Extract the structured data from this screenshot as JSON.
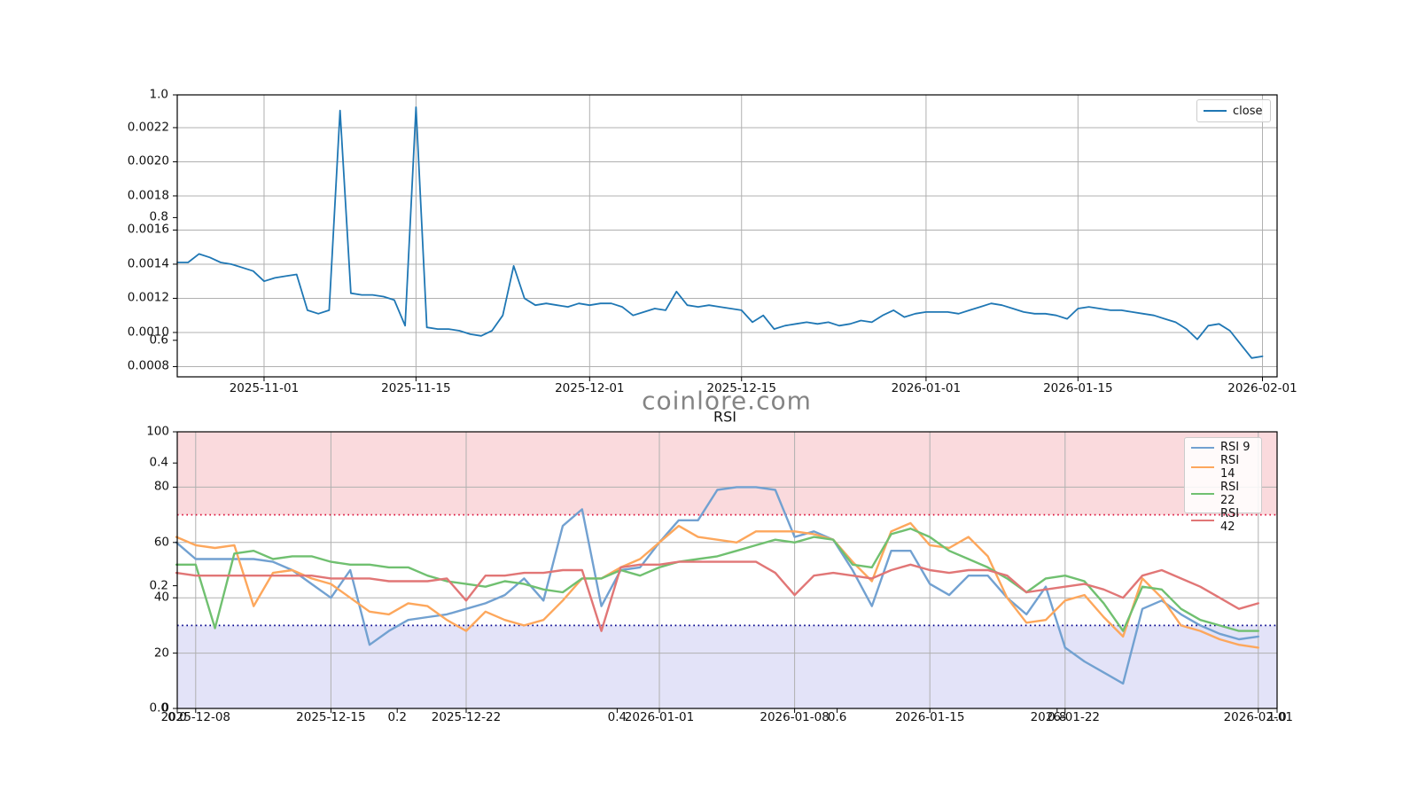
{
  "watermark_text": "coinlore.com",
  "colors": {
    "close": "#1f77b4",
    "rsi9": "#72a1d1",
    "rsi14": "#fda75c",
    "rsi22": "#70c070",
    "rsi42": "#e17676",
    "overbought_line": "#dc143c",
    "oversold_line": "#00008b",
    "overbought_band": "#fadadd",
    "oversold_band": "#e3e3f8",
    "grid": "#b0b0b0",
    "watermark": "#848484"
  },
  "chart_data": [
    {
      "type": "line",
      "name": "price",
      "title": "",
      "start_date": "2025-10-24",
      "end_date": "2026-02-01",
      "interval": "daily",
      "ylim": [
        0.00074,
        0.002392
      ],
      "grid": true,
      "legend_position": "upper right",
      "y_ticks": [
        {
          "label": "0.0008",
          "value": 0.0008
        },
        {
          "label": "0.0010",
          "value": 0.001
        },
        {
          "label": "0.0012",
          "value": 0.0012
        },
        {
          "label": "0.0014",
          "value": 0.0014
        },
        {
          "label": "0.0016",
          "value": 0.0016
        },
        {
          "label": "0.0018",
          "value": 0.0018
        },
        {
          "label": "0.0020",
          "value": 0.002
        },
        {
          "label": "0.0022",
          "value": 0.0022
        }
      ],
      "x_ticks": [
        {
          "label": "2025-11-01",
          "day": 8
        },
        {
          "label": "2025-11-15",
          "day": 22
        },
        {
          "label": "2025-12-01",
          "day": 38
        },
        {
          "label": "2025-12-15",
          "day": 52
        },
        {
          "label": "2026-01-01",
          "day": 69
        },
        {
          "label": "2026-01-15",
          "day": 83
        },
        {
          "label": "2026-02-01",
          "day": 100
        }
      ],
      "series": [
        {
          "name": "close",
          "color": "#1f77b4",
          "width": 1.8,
          "values": [
            0.00141,
            0.00141,
            0.00146,
            0.00144,
            0.00141,
            0.0014,
            0.00138,
            0.00136,
            0.0013,
            0.00132,
            0.00133,
            0.00134,
            0.00113,
            0.00111,
            0.00113,
            0.0023,
            0.00123,
            0.00122,
            0.00122,
            0.00121,
            0.00119,
            0.00104,
            0.00232,
            0.00103,
            0.00102,
            0.00102,
            0.00101,
            0.00099,
            0.00098,
            0.00101,
            0.0011,
            0.00139,
            0.0012,
            0.00116,
            0.00117,
            0.00116,
            0.00115,
            0.00117,
            0.00116,
            0.00117,
            0.00117,
            0.00115,
            0.0011,
            0.00112,
            0.00114,
            0.00113,
            0.00124,
            0.00116,
            0.00115,
            0.00116,
            0.00115,
            0.00114,
            0.00113,
            0.00106,
            0.0011,
            0.00102,
            0.00104,
            0.00105,
            0.00106,
            0.00105,
            0.00106,
            0.00104,
            0.00105,
            0.00107,
            0.00106,
            0.0011,
            0.00113,
            0.00109,
            0.00111,
            0.00112,
            0.00112,
            0.00112,
            0.00111,
            0.00113,
            0.00115,
            0.00117,
            0.00116,
            0.00114,
            0.00112,
            0.00111,
            0.00111,
            0.0011,
            0.00108,
            0.00114,
            0.00115,
            0.00114,
            0.00113,
            0.00113,
            0.00112,
            0.00111,
            0.0011,
            0.00108,
            0.00106,
            0.00102,
            0.00096,
            0.00104,
            0.00105,
            0.00101,
            0.00093,
            0.00085,
            0.00086
          ]
        }
      ]
    },
    {
      "type": "line",
      "name": "rsi",
      "title": "RSI",
      "start_date": "2025-12-07",
      "end_date": "2026-02-01",
      "interval": "daily",
      "ylim": [
        0,
        100
      ],
      "grid": true,
      "legend_position": "upper right",
      "y_ticks": [
        {
          "label": "0",
          "value": 0
        },
        {
          "label": "20",
          "value": 20
        },
        {
          "label": "40",
          "value": 40
        },
        {
          "label": "60",
          "value": 60
        },
        {
          "label": "80",
          "value": 80
        },
        {
          "label": "100",
          "value": 100
        }
      ],
      "x_ticks": [
        {
          "label": "2025-12-08",
          "day": 1
        },
        {
          "label": "2025-12-15",
          "day": 8
        },
        {
          "label": "2025-12-22",
          "day": 15
        },
        {
          "label": "2026-01-01",
          "day": 25
        },
        {
          "label": "2026-01-08",
          "day": 32
        },
        {
          "label": "2026-01-15",
          "day": 39
        },
        {
          "label": "2026-01-22",
          "day": 46
        },
        {
          "label": "2026-02-01",
          "day": 56
        }
      ],
      "bands": [
        {
          "from": 70,
          "to": 100,
          "color": "#fadadd",
          "meaning": "overbought"
        },
        {
          "from": 0,
          "to": 30,
          "color": "#e3e3f8",
          "meaning": "oversold"
        }
      ],
      "hlines": [
        {
          "value": 70,
          "color": "#dc143c",
          "style": "dotted"
        },
        {
          "value": 30,
          "color": "#00008b",
          "style": "dotted"
        }
      ],
      "series": [
        {
          "name": "RSI 9",
          "color": "#72a1d1",
          "width": 2.4,
          "values": [
            60,
            54,
            54,
            54,
            54,
            53,
            50,
            45,
            40,
            50,
            23,
            28,
            32,
            33,
            34,
            36,
            38,
            41,
            47,
            39,
            66,
            72,
            37,
            50,
            51,
            60,
            68,
            68,
            79,
            80,
            80,
            79,
            62,
            64,
            61,
            50,
            37,
            57,
            57,
            45,
            41,
            48,
            48,
            40,
            34,
            44,
            22,
            17,
            13,
            9,
            36,
            39,
            34,
            30,
            27,
            25,
            26
          ]
        },
        {
          "name": "RSI 14",
          "color": "#fda75c",
          "width": 2.4,
          "values": [
            62,
            59,
            58,
            59,
            37,
            49,
            50,
            47,
            45,
            40,
            35,
            34,
            38,
            37,
            32,
            28,
            35,
            32,
            30,
            32,
            39,
            47,
            47,
            51,
            54,
            60,
            66,
            62,
            61,
            60,
            64,
            64,
            64,
            63,
            61,
            53,
            46,
            64,
            67,
            59,
            58,
            62,
            55,
            40,
            31,
            32,
            39,
            41,
            33,
            26,
            47,
            40,
            30,
            28,
            25,
            23,
            22
          ]
        },
        {
          "name": "RSI 22",
          "color": "#70c070",
          "width": 2.4,
          "values": [
            52,
            52,
            29,
            56,
            57,
            54,
            55,
            55,
            53,
            52,
            52,
            51,
            51,
            48,
            46,
            45,
            44,
            46,
            45,
            43,
            42,
            47,
            47,
            50,
            48,
            51,
            53,
            54,
            55,
            57,
            59,
            61,
            60,
            62,
            61,
            52,
            51,
            63,
            65,
            62,
            57,
            54,
            51,
            47,
            42,
            47,
            48,
            46,
            38,
            28,
            44,
            43,
            36,
            32,
            30,
            28,
            28
          ]
        },
        {
          "name": "RSI 42",
          "color": "#e17676",
          "width": 2.4,
          "values": [
            49,
            48,
            48,
            48,
            48,
            48,
            48,
            48,
            47,
            47,
            47,
            46,
            46,
            46,
            47,
            39,
            48,
            48,
            49,
            49,
            50,
            50,
            28,
            51,
            52,
            52,
            53,
            53,
            53,
            53,
            53,
            49,
            41,
            48,
            49,
            48,
            47,
            50,
            52,
            50,
            49,
            50,
            50,
            48,
            42,
            43,
            44,
            45,
            43,
            40,
            48,
            50,
            47,
            44,
            40,
            36,
            38
          ]
        }
      ]
    }
  ],
  "phantom_axis": {
    "y_labels": [
      "1.0",
      "0.8",
      "0.6",
      "0.4",
      "0.2",
      "0.0"
    ],
    "x_labels": [
      "0.0",
      "0.2",
      "0.4",
      "0.6",
      "0.8",
      "1.0"
    ]
  }
}
